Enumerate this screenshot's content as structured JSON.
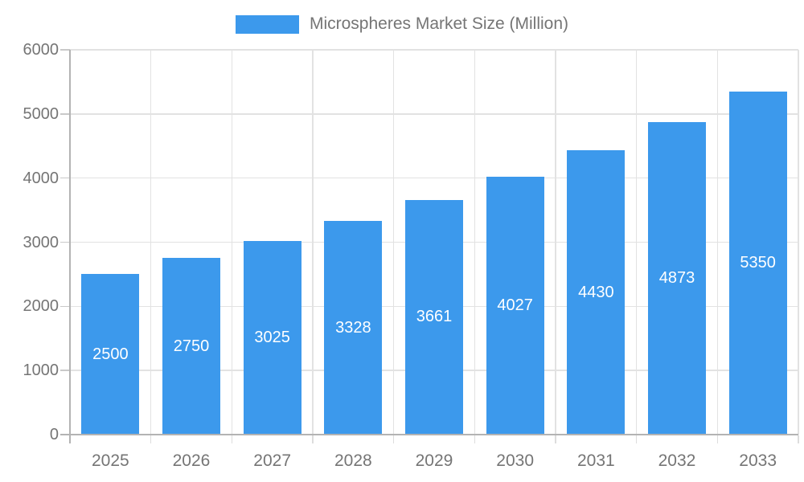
{
  "legend": {
    "label": "Microspheres Market Size (Million)"
  },
  "colors": {
    "bar": "#3C99EC",
    "grid": "#e2e2e2",
    "axis": "#b3b3b3",
    "y_tick": "#c9c9c9",
    "x_tick": "#dddddd",
    "axis_text": "#757575",
    "bar_label_text": "#ffffff",
    "background": "#ffffff"
  },
  "chart_data": {
    "type": "bar",
    "title": "Microspheres Market Size (Million)",
    "series_name": "Microspheres Market Size (Million)",
    "categories": [
      "2025",
      "2026",
      "2027",
      "2028",
      "2029",
      "2030",
      "2031",
      "2032",
      "2033"
    ],
    "values": [
      2500,
      2750,
      3025,
      3328,
      3661,
      4027,
      4430,
      4873,
      5350
    ],
    "bar_labels": [
      "2500",
      "2750",
      "3025",
      "3328",
      "3661",
      "4027",
      "4430",
      "4873",
      "5350"
    ],
    "xlabel": "",
    "ylabel": "",
    "ylim": [
      0,
      6000
    ],
    "yticks": [
      0,
      1000,
      2000,
      3000,
      4000,
      5000,
      6000
    ],
    "grid": true,
    "legend_position": "top-center",
    "bar_value_labels_visible": true,
    "bar_value_label_position": "center"
  }
}
